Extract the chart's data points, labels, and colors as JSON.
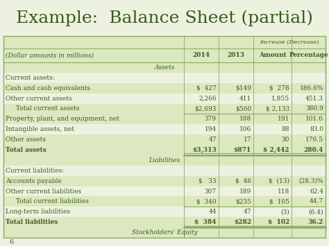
{
  "title": "Example:  Balance Sheet (partial)",
  "title_fontsize": 18,
  "title_color": "#3a5a1e",
  "bg_color": "#edf2e0",
  "table_bg_light": "#dce8c0",
  "table_bg_white": "#edf2e0",
  "border_color": "#8aaa60",
  "text_color": "#3a5a1e",
  "page_number": "6",
  "rows": [
    {
      "label": "Assets",
      "vals": [
        "",
        "",
        "",
        ""
      ],
      "style": "section_header"
    },
    {
      "label": "Current assets:",
      "vals": [
        "",
        "",
        "",
        ""
      ],
      "style": "subheader"
    },
    {
      "label": "Cash and cash equivalents",
      "vals": [
        "$  427",
        "$149",
        "$  278",
        "186.6%"
      ],
      "style": "normal",
      "shade": true
    },
    {
      "label": "Other current assets",
      "vals": [
        "2,266",
        "411",
        "1,855",
        "451.3"
      ],
      "style": "normal",
      "shade": false
    },
    {
      "label": "Total current assets",
      "vals": [
        "$2,693",
        "$560",
        "$ 2,133",
        "380.9"
      ],
      "style": "subtotal"
    },
    {
      "label": "Property, plant, and equipment, net",
      "vals": [
        "379",
        "188",
        "191",
        "101.6"
      ],
      "style": "normal",
      "shade": true
    },
    {
      "label": "Intangible assets, net",
      "vals": [
        "194",
        "106",
        "88",
        "83.0"
      ],
      "style": "normal",
      "shade": false
    },
    {
      "label": "Other assets",
      "vals": [
        "47",
        "17",
        "30",
        "176.5"
      ],
      "style": "normal",
      "shade": true
    },
    {
      "label": "Total assets",
      "vals": [
        "$3,313",
        "$871",
        "$ 2,442",
        "280.4"
      ],
      "style": "total"
    },
    {
      "label": "Liabilities",
      "vals": [
        "",
        "",
        "",
        ""
      ],
      "style": "section_header"
    },
    {
      "label": "Current liabilities:",
      "vals": [
        "",
        "",
        "",
        ""
      ],
      "style": "subheader"
    },
    {
      "label": "Accounts payable",
      "vals": [
        "$   33",
        "$  46",
        "$  (13)",
        "(28.3)%"
      ],
      "style": "normal",
      "shade": true
    },
    {
      "label": "Other current liabilities",
      "vals": [
        "307",
        "189",
        "118",
        "62.4"
      ],
      "style": "normal",
      "shade": false
    },
    {
      "label": "Total current liabilities",
      "vals": [
        "$  340",
        "$235",
        "$  105",
        "44.7"
      ],
      "style": "subtotal"
    },
    {
      "label": "Long-term liabilities",
      "vals": [
        "44",
        "47",
        "(3)",
        "(6.4)"
      ],
      "style": "normal",
      "shade": false
    },
    {
      "label": "Total liabilities",
      "vals": [
        "$  384",
        "$282",
        "$  102",
        "36.2"
      ],
      "style": "total"
    },
    {
      "label": "Stockholders' Equity",
      "vals": [
        "",
        "",
        "",
        ""
      ],
      "style": "section_header"
    }
  ]
}
